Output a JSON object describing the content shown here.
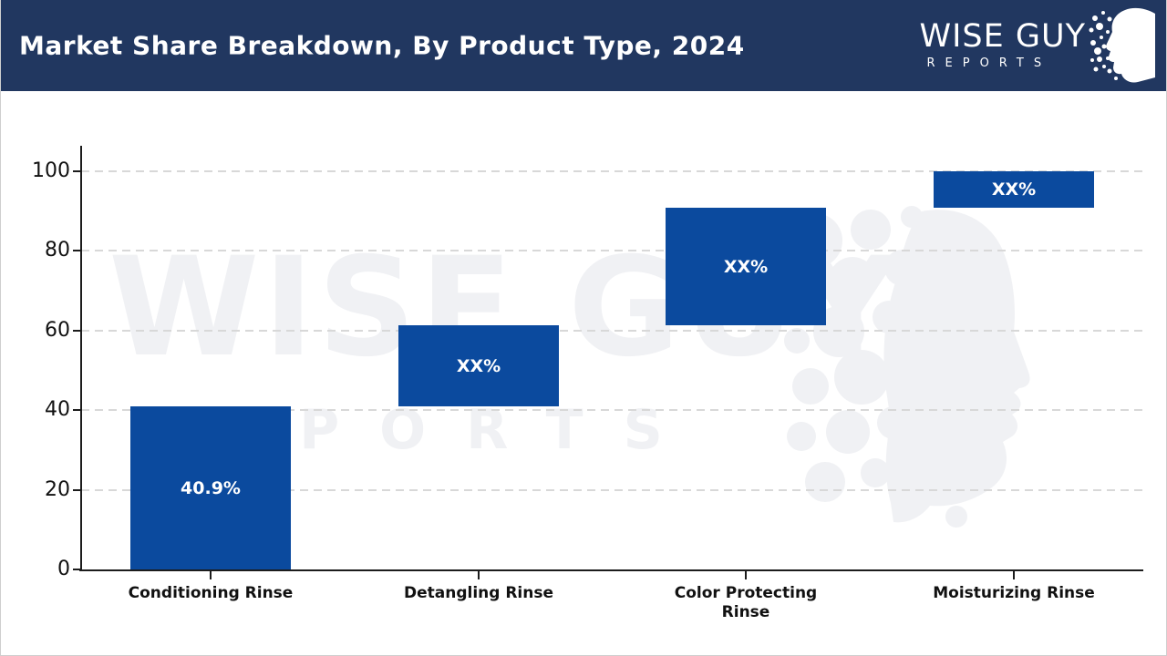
{
  "colors": {
    "header_bg": "#213760",
    "bar": "#0b4a9e",
    "bar_label": "#ffffff",
    "grid": "#d8d8d8",
    "axis": "#1c1c1c",
    "watermark": "#f0f1f4"
  },
  "header": {
    "title": "Market Share Breakdown, By Product Type, 2024",
    "logo": {
      "name": "WISE GUY",
      "tagline": "REPORTS"
    }
  },
  "watermark": {
    "line1": "WISE GUY",
    "line2": "REPORTS"
  },
  "chart_data": {
    "type": "bar",
    "subtype": "waterfall",
    "title": "Market Share Breakdown, By Product Type, 2024",
    "categories": [
      "Conditioning Rinse",
      "Detangling Rinse",
      "Color Protecting Rinse",
      "Moisturizing Rinse"
    ],
    "segments": [
      {
        "category": "Conditioning Rinse",
        "start": 0,
        "end": 40.9,
        "label": "40.9%"
      },
      {
        "category": "Detangling Rinse",
        "start": 40.9,
        "end": 61.2,
        "label": "XX%"
      },
      {
        "category": "Color Protecting Rinse",
        "start": 61.2,
        "end": 90.7,
        "label": "XX%"
      },
      {
        "category": "Moisturizing Rinse",
        "start": 90.7,
        "end": 100,
        "label": "XX%"
      }
    ],
    "yticks": [
      0,
      20,
      40,
      60,
      80,
      100
    ],
    "ylim": [
      0,
      105
    ],
    "xlabel": "",
    "ylabel": "",
    "grid": "horizontal-dashed",
    "legend": "none"
  }
}
